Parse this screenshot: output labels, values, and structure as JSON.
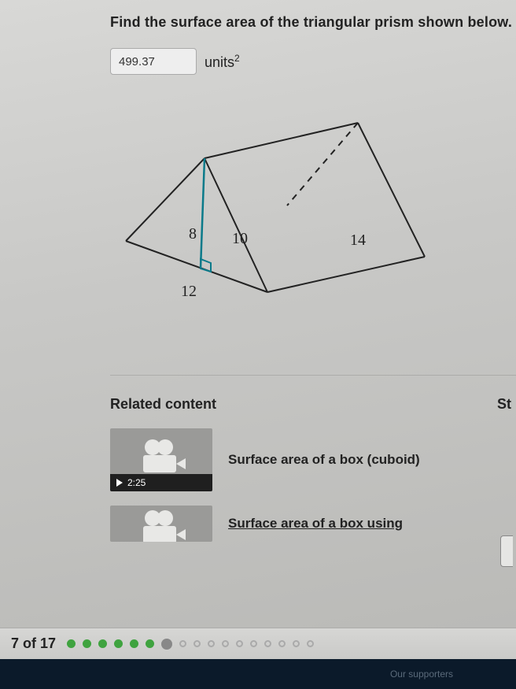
{
  "question": "Find the surface area of the triangular prism shown below.",
  "answer_value": "499.37",
  "units_base": "units",
  "units_exp": "2",
  "prism": {
    "height_label": "8",
    "slant_label": "10",
    "base_label": "12",
    "depth_label": "14",
    "stroke_color": "#222222",
    "altitude_color": "#0a7a8a",
    "stroke_width": 2,
    "label_fontsize": 20
  },
  "related": {
    "heading": "Related content",
    "side_letter": "St",
    "items": [
      {
        "title": "Surface area of a box (cuboid)",
        "duration": "2:25",
        "link": false
      },
      {
        "title": "Surface area of a box using",
        "duration": "",
        "link": true
      }
    ]
  },
  "progress": {
    "label": "7 of 17",
    "dots": [
      "done",
      "done",
      "done",
      "done",
      "done",
      "done",
      "current",
      "open",
      "open",
      "open",
      "open",
      "open",
      "open",
      "open",
      "open",
      "open",
      "open"
    ]
  },
  "footer_text": "Our supporters"
}
